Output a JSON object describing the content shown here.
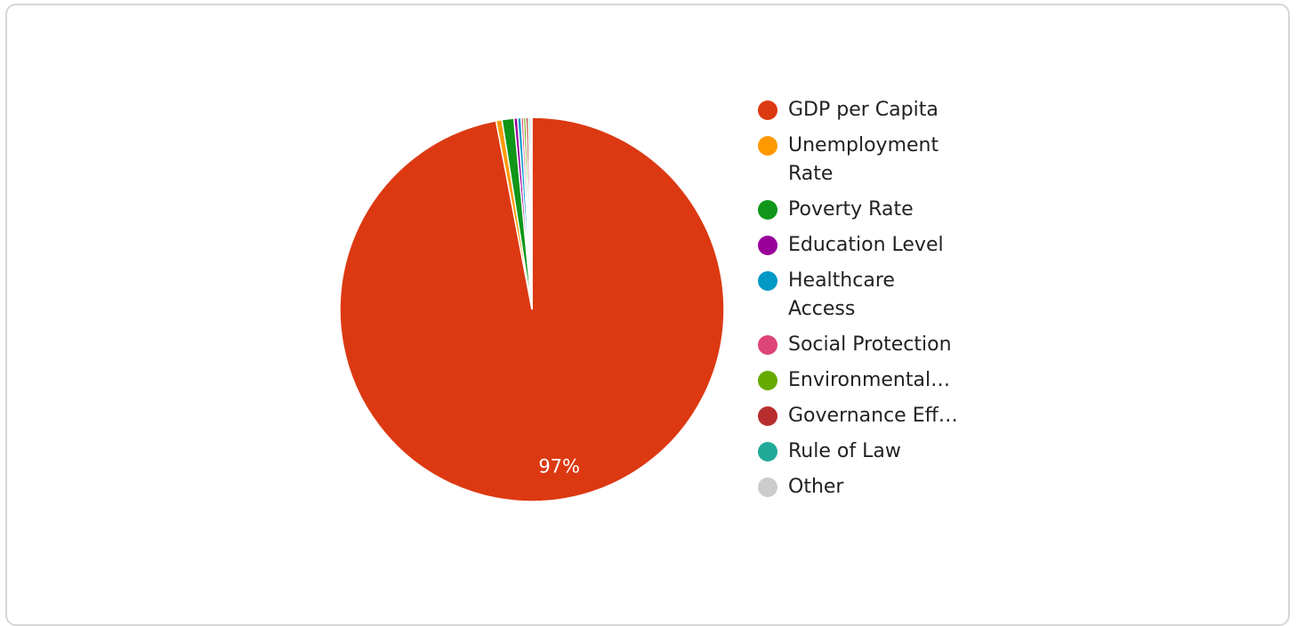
{
  "chart_data": {
    "type": "pie",
    "title": "",
    "slices": [
      {
        "label": "GDP per Capita",
        "display_label": "GDP per Capita",
        "value": 97.0,
        "color": "#dc3912"
      },
      {
        "label": "Unemployment Rate",
        "display_label": "Unemployment Rate",
        "value": 0.5,
        "color": "#ff9900"
      },
      {
        "label": "Poverty Rate",
        "display_label": "Poverty Rate",
        "value": 1.0,
        "color": "#109618"
      },
      {
        "label": "Education Level",
        "display_label": "Education Level",
        "value": 0.3,
        "color": "#990099"
      },
      {
        "label": "Healthcare Access",
        "display_label": "Healthcare Access",
        "value": 0.3,
        "color": "#0099c6"
      },
      {
        "label": "Social Protection",
        "display_label": "Social Protection",
        "value": 0.2,
        "color": "#dd4477"
      },
      {
        "label": "Environmental…",
        "display_label": "Environmental…",
        "value": 0.2,
        "color": "#66aa00"
      },
      {
        "label": "Governance Eff…",
        "display_label": "Governance Eff…",
        "value": 0.2,
        "color": "#b82e2e"
      },
      {
        "label": "Rule of Law",
        "display_label": "Rule of Law",
        "value": 0.15,
        "color": "#22aa99"
      },
      {
        "label": "Other",
        "display_label": "Other",
        "value": 0.15,
        "color": "#cccccc"
      }
    ],
    "data_labels": [
      "97%"
    ],
    "legend_position": "right"
  }
}
